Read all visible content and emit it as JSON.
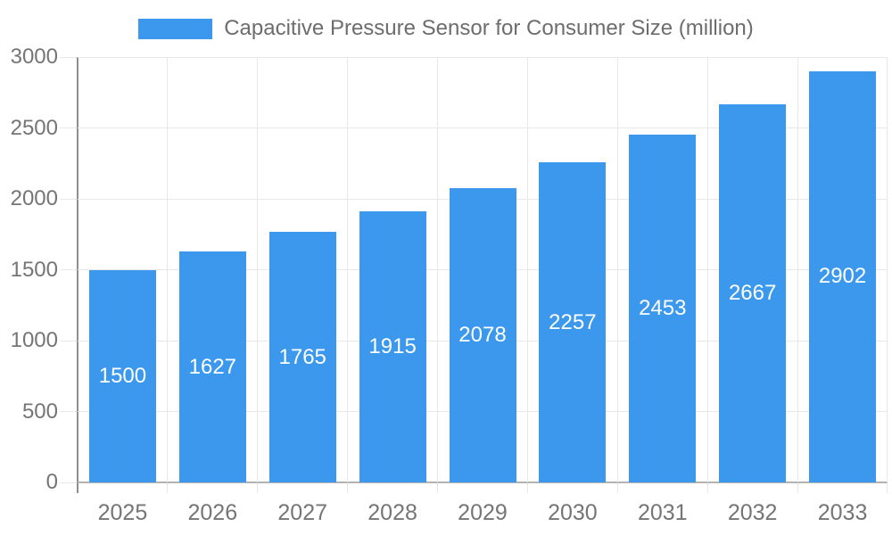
{
  "legend": {
    "label": "Capacitive Pressure Sensor for Consumer Size (million)"
  },
  "chart_data": {
    "type": "bar",
    "title": "Capacitive Pressure Sensor for Consumer Size (million)",
    "categories": [
      "2025",
      "2026",
      "2027",
      "2028",
      "2029",
      "2030",
      "2031",
      "2032",
      "2033"
    ],
    "values": [
      1500,
      1627,
      1765,
      1915,
      2078,
      2257,
      2453,
      2667,
      2902
    ],
    "bar_labels": [
      "1500",
      "1627",
      "1765",
      "1915",
      "2078",
      "2257",
      "2453",
      "2667",
      "2902"
    ],
    "xlabel": "",
    "ylabel": "",
    "ylim": [
      0,
      3000
    ],
    "yticks": [
      0,
      500,
      1000,
      1500,
      2000,
      2500,
      3000
    ],
    "legend_position": "top",
    "grid": true,
    "bar_label_position": "inside-center",
    "colors": {
      "bar": "#3b98ec",
      "bar_label": "#ffffff",
      "axis_text": "#757575",
      "legend_text": "#6d6d6d",
      "grid_line": "#e8e8e8",
      "tick_line": "#e8e8e8",
      "x_axis_line": "#b3b3b3",
      "y_axis_line": "#8f8f8f"
    }
  }
}
